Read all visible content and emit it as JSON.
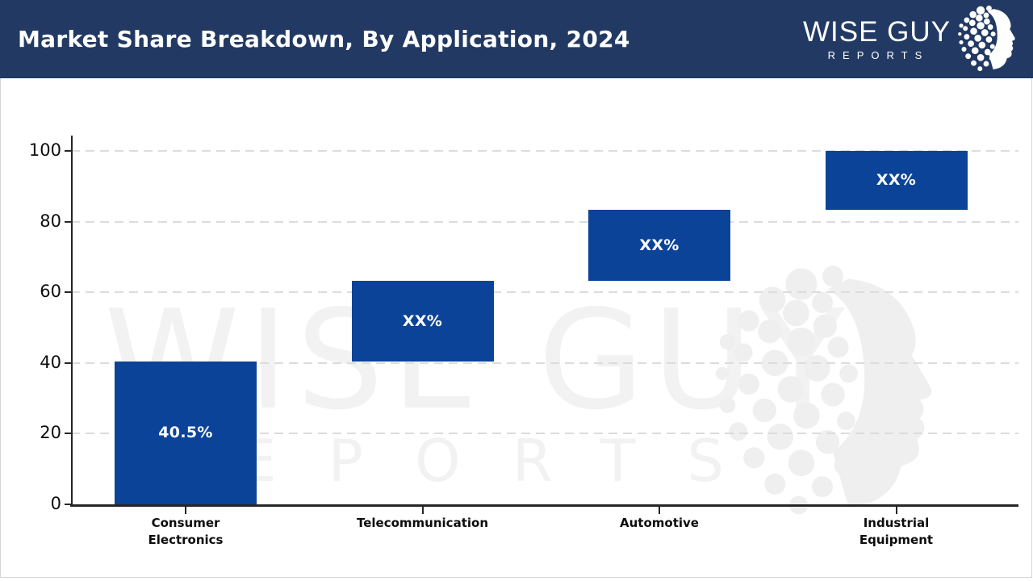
{
  "header": {
    "title": "Market Share Breakdown, By Application, 2024",
    "logo": {
      "name": "WISE GUY",
      "subname": "REPORTS"
    }
  },
  "watermark": {
    "line1": "WISE GUY",
    "line2": "REPORTS"
  },
  "chart_data": {
    "type": "bar",
    "subtype": "waterfall",
    "title": "Market Share Breakdown, By Application, 2024",
    "categories": [
      "Consumer Electronics",
      "Telecommunication",
      "Automotive",
      "Industrial Equipment"
    ],
    "categories_lines": [
      [
        "Consumer",
        "Electronics"
      ],
      [
        "Telecommunication"
      ],
      [
        "Automotive"
      ],
      [
        "Industrial",
        "Equipment"
      ]
    ],
    "segments": [
      {
        "category": "Consumer Electronics",
        "start": 0,
        "end": 40.5,
        "label": "40.5%"
      },
      {
        "category": "Telecommunication",
        "start": 40.5,
        "end": 63.3,
        "label": "XX%"
      },
      {
        "category": "Automotive",
        "start": 63.3,
        "end": 83.4,
        "label": "XX%"
      },
      {
        "category": "Industrial Equipment",
        "start": 83.4,
        "end": 100,
        "label": "XX%"
      }
    ],
    "xlabel": "",
    "ylabel": "",
    "ylim": [
      0,
      100
    ],
    "yticks": [
      0,
      20,
      40,
      60,
      80,
      100
    ],
    "grid": "horizontal-dashed",
    "legend": "none",
    "bar_color": "#0b4398",
    "bar_label_color": "#ffffff"
  },
  "colors": {
    "header_bg": "#223a63",
    "bar": "#0b4398",
    "axis": "#262626",
    "grid": "#dcdcdc",
    "watermark": "#f2f2f2",
    "border": "#d5d5d5"
  }
}
